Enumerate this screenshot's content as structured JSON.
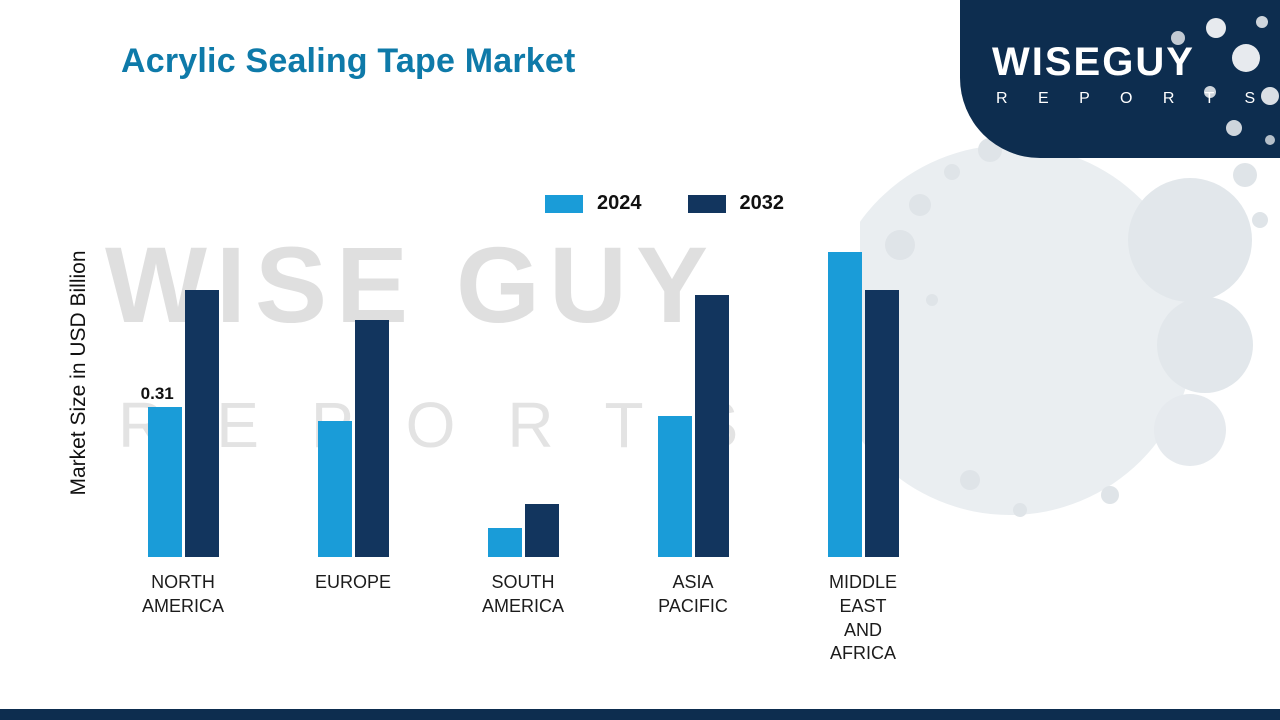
{
  "page": {
    "title": "Acrylic Sealing Tape Market"
  },
  "logo": {
    "line1": "WISEGUY",
    "line2": "R E P O R T S"
  },
  "watermark": {
    "line1": "WISE GUY",
    "line2": "REPORTS"
  },
  "colors": {
    "title": "#0e7aa9",
    "series_2024": "#1a9cd8",
    "series_2032": "#12355e",
    "logo_background": "#0d2d4f",
    "watermark_gray": "#d8d8d8"
  },
  "chart_data": {
    "type": "bar",
    "title": "Acrylic Sealing Tape Market",
    "xlabel": "",
    "ylabel": "Market Size in USD Billion",
    "ylim": [
      0,
      0.65
    ],
    "grid": false,
    "legend_position": "top",
    "categories": [
      "NORTH AMERICA",
      "EUROPE",
      "SOUTH AMERICA",
      "ASIA PACIFIC",
      "MIDDLE EAST AND AFRICA"
    ],
    "category_lines": [
      [
        "NORTH",
        "AMERICA"
      ],
      [
        "EUROPE"
      ],
      [
        "SOUTH",
        "AMERICA"
      ],
      [
        "ASIA",
        "PACIFIC"
      ],
      [
        "MIDDLE",
        "EAST",
        "AND",
        "AFRICA"
      ]
    ],
    "series": [
      {
        "name": "2024",
        "color": "#1a9cd8",
        "values": [
          0.31,
          0.28,
          0.06,
          0.29,
          0.63
        ]
      },
      {
        "name": "2032",
        "color": "#12355e",
        "values": [
          0.55,
          0.49,
          0.11,
          0.54,
          0.55
        ]
      }
    ],
    "bar_label": {
      "series_index": 0,
      "category_index": 0,
      "text": "0.31"
    }
  }
}
